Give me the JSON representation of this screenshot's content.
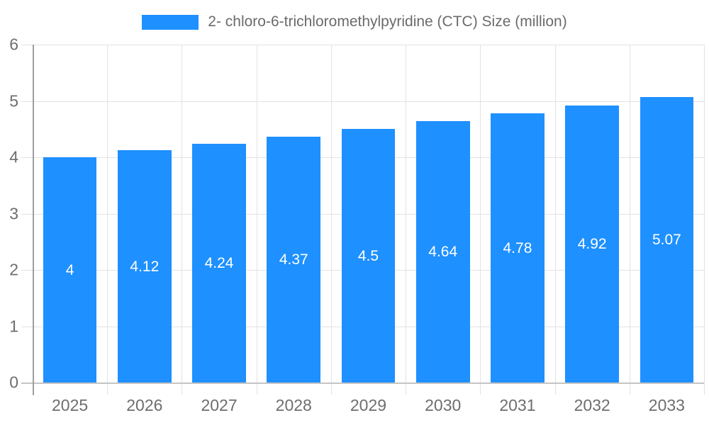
{
  "chart_data": {
    "type": "bar",
    "title": "",
    "legend": {
      "position": "top",
      "label": "2- chloro-6-trichloromethylpyridine (CTC) Size (million)"
    },
    "categories": [
      "2025",
      "2026",
      "2027",
      "2028",
      "2029",
      "2030",
      "2031",
      "2032",
      "2033"
    ],
    "series": [
      {
        "name": "2- chloro-6-trichloromethylpyridine (CTC) Size (million)",
        "values": [
          4,
          4.12,
          4.24,
          4.37,
          4.5,
          4.64,
          4.78,
          4.92,
          5.07
        ],
        "value_labels": [
          "4",
          "4.12",
          "4.24",
          "4.37",
          "4.5",
          "4.64",
          "4.78",
          "4.92",
          "5.07"
        ]
      }
    ],
    "xlabel": "",
    "ylabel": "",
    "ylim": [
      0,
      6
    ],
    "yticks": [
      0,
      1,
      2,
      3,
      4,
      5,
      6
    ],
    "grid": true,
    "colors": {
      "bar": "#1E90FF",
      "bar_label": "#FFFFFF",
      "axis_text": "#6E6E6E",
      "legend_text": "#6B6B6B",
      "gridline": "#E2E2E2",
      "x_axis_line": "#C4C4C4",
      "y_axis_line": "#9E9E9E",
      "background": "#FFFFFF"
    }
  }
}
